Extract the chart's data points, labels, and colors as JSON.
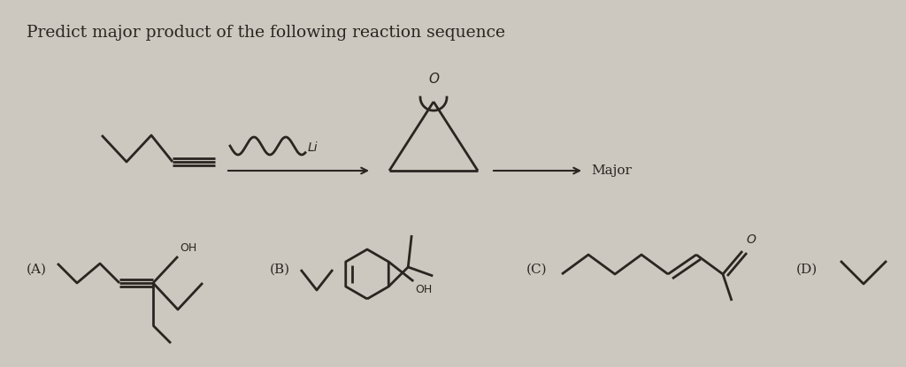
{
  "title": "Predict major product of the following reaction sequence",
  "title_fontsize": 13.5,
  "bg_color": "#ccc8bf",
  "line_color": "#2a2520",
  "line_width": 2.0,
  "label_A": "(A)",
  "label_B": "(B)",
  "label_C": "(C)",
  "label_D": "(D)",
  "label_Major": "Major",
  "label_Li": "Li",
  "label_OH1": "OH",
  "label_OH2": "OH",
  "label_O1": "O",
  "label_O2": "O"
}
